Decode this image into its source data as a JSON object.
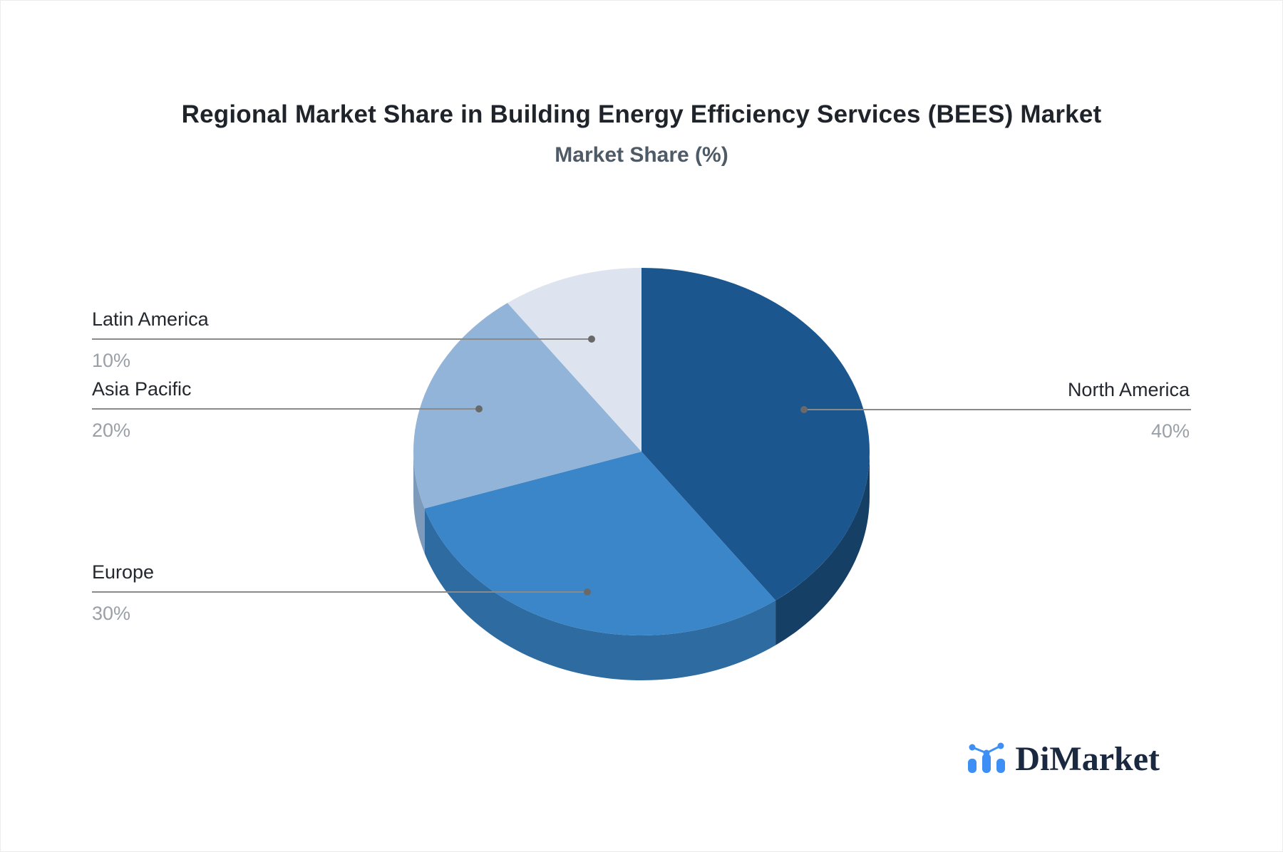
{
  "title": "Regional Market Share in Building Energy Efficiency Services (BEES) Market",
  "subtitle": "Market Share (%)",
  "chart_data": {
    "type": "pie",
    "style": "3d",
    "title": "Regional Market Share in Building Energy Efficiency Services (BEES) Market",
    "subtitle": "Market Share (%)",
    "unit": "%",
    "start_angle_deg": 90,
    "direction": "clockwise",
    "legend_position": "callout-labels",
    "slices": [
      {
        "label": "North America",
        "value": 40,
        "display": "40%",
        "color": "#1b568f",
        "side_color": "#163f66"
      },
      {
        "label": "Europe",
        "value": 30,
        "display": "30%",
        "color": "#3a86c8",
        "side_color": "#2e6ba0"
      },
      {
        "label": "Asia Pacific",
        "value": 20,
        "display": "20%",
        "color": "#92b4d8",
        "side_color": "#7d9aba"
      },
      {
        "label": "Latin America",
        "value": 10,
        "display": "10%",
        "color": "#dde4ef",
        "side_color": "#c6d1e0"
      }
    ]
  },
  "callout": {
    "line_color": "#8a8a8a",
    "dot_color": "#696969",
    "label_color": "#23272e",
    "value_color": "#9aa0a8"
  },
  "branding": {
    "logo_text": "DiMarket",
    "logo_icon": "bar-line-chart-icon",
    "logo_text_color": "#1a2940",
    "logo_icon_color": "#3d8ef5"
  }
}
